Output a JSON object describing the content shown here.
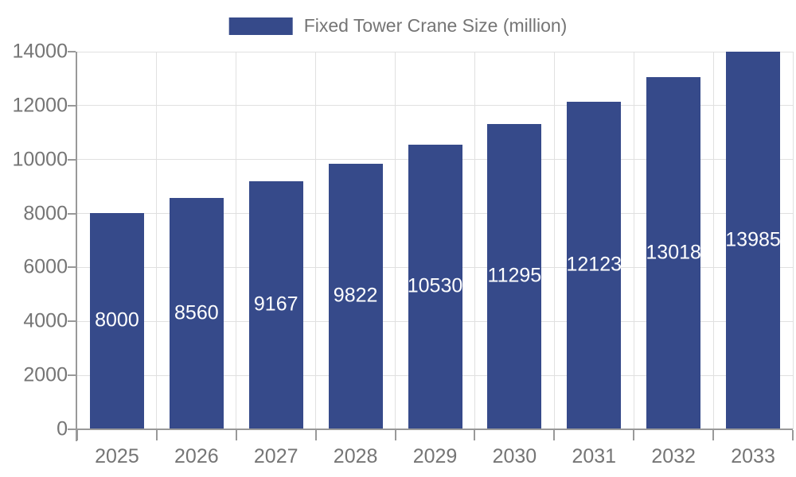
{
  "legend": {
    "label": "Fixed Tower Crane Size (million)"
  },
  "chart_data": {
    "type": "bar",
    "title": "Fixed Tower Crane Size (million)",
    "categories": [
      "2025",
      "2026",
      "2027",
      "2028",
      "2029",
      "2030",
      "2031",
      "2032",
      "2033"
    ],
    "series": [
      {
        "name": "Fixed Tower Crane Size (million)",
        "values": [
          8000,
          8560,
          9167,
          9822,
          10530,
          11295,
          12123,
          13018,
          13985
        ]
      }
    ],
    "xlabel": "",
    "ylabel": "",
    "ylim": [
      0,
      14000
    ],
    "yticks": [
      0,
      2000,
      4000,
      6000,
      8000,
      10000,
      12000,
      14000
    ],
    "grid": true,
    "legend_position": "top",
    "bar_labels_inside": true,
    "colors": {
      "bar": "#364a8a",
      "bar_label": "#ffffff",
      "axis_line": "#999999",
      "gridline": "#e0e0e0",
      "tick_text": "#757575",
      "legend_text": "#757575",
      "background": "#ffffff"
    }
  }
}
